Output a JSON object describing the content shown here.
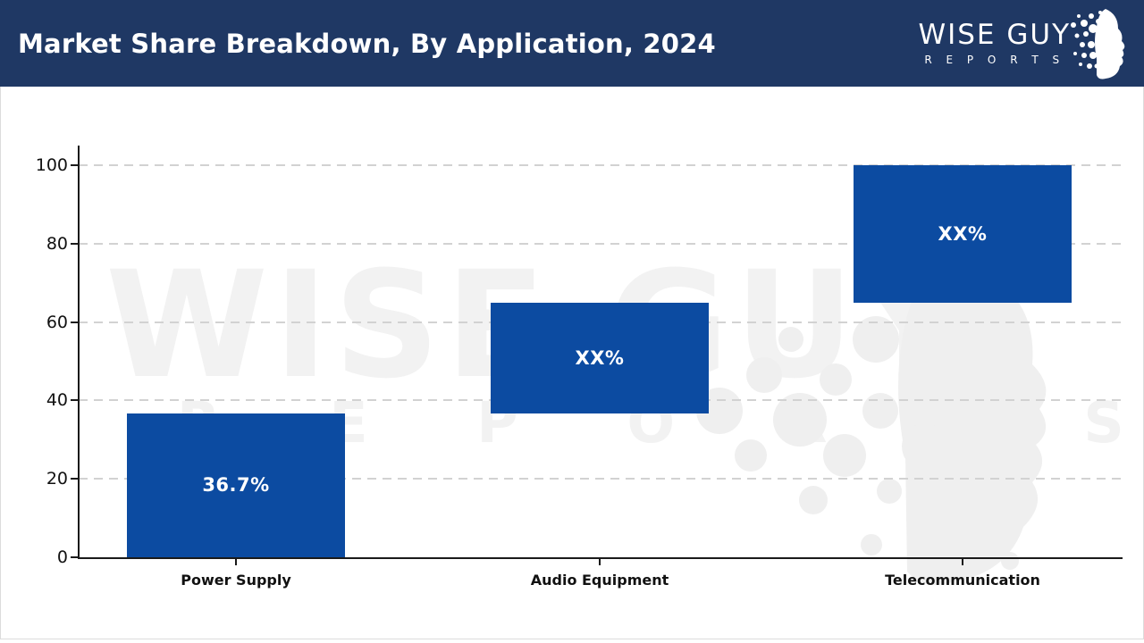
{
  "header": {
    "title": "Market Share Breakdown, By Application, 2024",
    "logo": {
      "brand": "WISE GUY",
      "sub": "R E P O R T S"
    }
  },
  "watermark": {
    "line1": "WISE GUY",
    "line2": "R E P O R T S"
  },
  "chart_data": {
    "type": "bar",
    "variant": "floating-segment-waterfall",
    "title": "Market Share Breakdown, By Application, 2024",
    "categories": [
      "Power Supply",
      "Audio Equipment",
      "Telecommunication"
    ],
    "bars": [
      {
        "category": "Power Supply",
        "start": 0,
        "end": 36.7,
        "label": "36.7%"
      },
      {
        "category": "Audio Equipment",
        "start": 36.7,
        "end": 65,
        "label": "XX%"
      },
      {
        "category": "Telecommunication",
        "start": 65,
        "end": 100,
        "label": "XX%"
      }
    ],
    "yticks": [
      0,
      20,
      40,
      60,
      80,
      100
    ],
    "ylim": [
      0,
      105
    ],
    "xlabel": "",
    "ylabel": "",
    "grid": "horizontal-dashed",
    "legend": "none",
    "colors": {
      "bar": "#0c4ba1",
      "grid": "#d2d2d2",
      "axis": "#1a1a1a",
      "bar_label": "#ffffff",
      "tick_label": "#111111",
      "header_bg": "#1f3864",
      "watermark": "#f2f2f2"
    }
  }
}
